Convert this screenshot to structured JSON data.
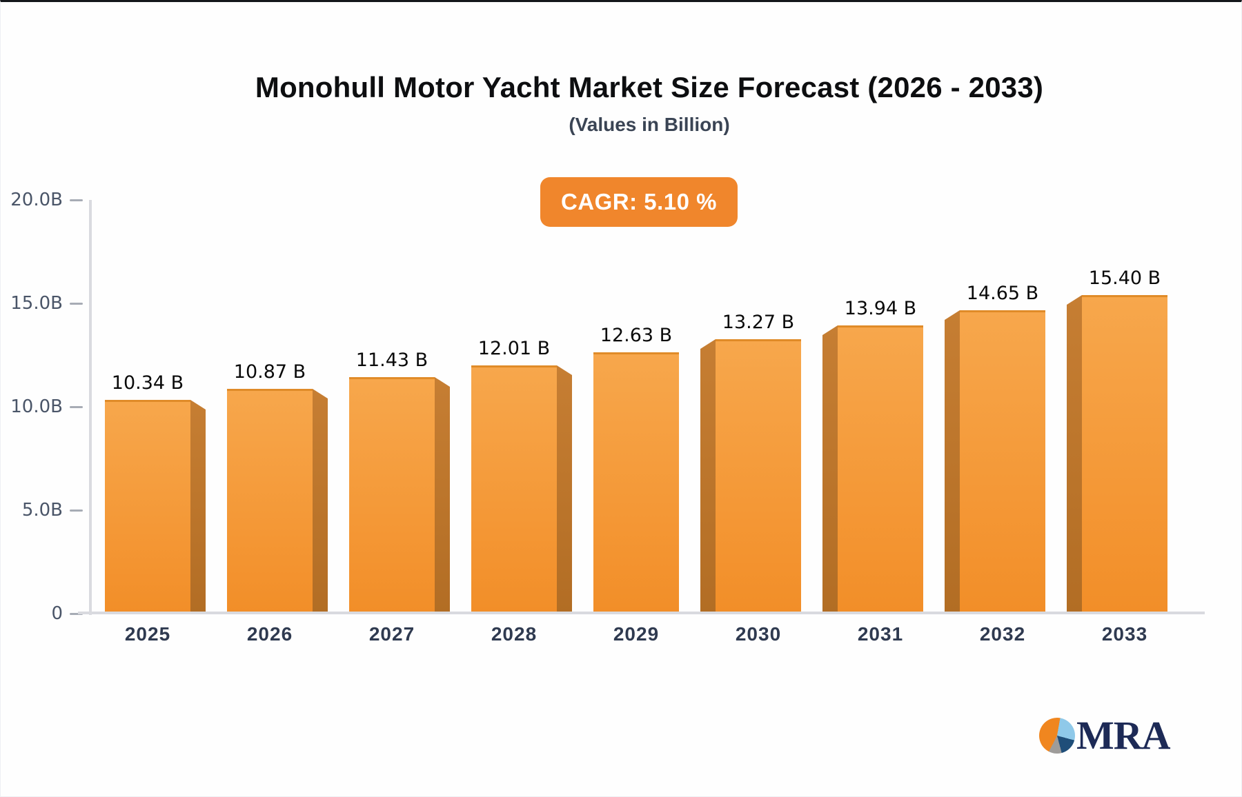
{
  "page": {
    "background": "#fefefe",
    "top_border_color": "#14171b"
  },
  "header": {
    "title": "Monohull Motor Yacht Market Size Forecast (2026 - 2033)",
    "subtitle": "(Values in Billion)"
  },
  "badge": {
    "label": "CAGR: 5.10 %",
    "background": "#f0862c",
    "text_color": "#ffffff"
  },
  "chart_data": {
    "type": "bar",
    "title": "Monohull Motor Yacht Market Size Forecast (2026 - 2033)",
    "subtitle": "(Values in Billion)",
    "cagr": "5.10 %",
    "categories": [
      "2025",
      "2026",
      "2027",
      "2028",
      "2029",
      "2030",
      "2031",
      "2032",
      "2033"
    ],
    "values": [
      10.34,
      10.87,
      11.43,
      12.01,
      12.63,
      13.27,
      13.94,
      14.65,
      15.4
    ],
    "value_labels": [
      "10.34 B",
      "10.87 B",
      "11.43 B",
      "12.01 B",
      "12.63 B",
      "13.27 B",
      "13.94 B",
      "14.65 B",
      "15.40 B"
    ],
    "y_ticks": [
      {
        "label": "20.0B",
        "value": 20
      },
      {
        "label": "15.0B",
        "value": 15
      },
      {
        "label": "10.0B",
        "value": 10
      },
      {
        "label": "5.0B",
        "value": 5
      },
      {
        "label": "0",
        "value": 0
      }
    ],
    "ylim": [
      0,
      20
    ],
    "grid": false,
    "legend": false,
    "bar_style": {
      "face_top_color": "#f7a74c",
      "face_bottom_color": "#f28e28",
      "face_edge_color": "#e08b28",
      "side_top_color": "#c67e33",
      "side_bottom_color": "#b26d24"
    }
  },
  "axis": {
    "line_color": "#d9dadf",
    "tick_color": "#a7acb5",
    "y_label_color": "#4a5568",
    "x_label_color": "#2f3a50",
    "value_label_color": "#0a0a0a"
  },
  "logo": {
    "text": "MRA",
    "text_color": "#1d2a56",
    "pie_colors": {
      "orange": "#f0861f",
      "light_blue": "#8fc9e9",
      "navy": "#1f4e79",
      "gray": "#9e9c9a"
    }
  }
}
